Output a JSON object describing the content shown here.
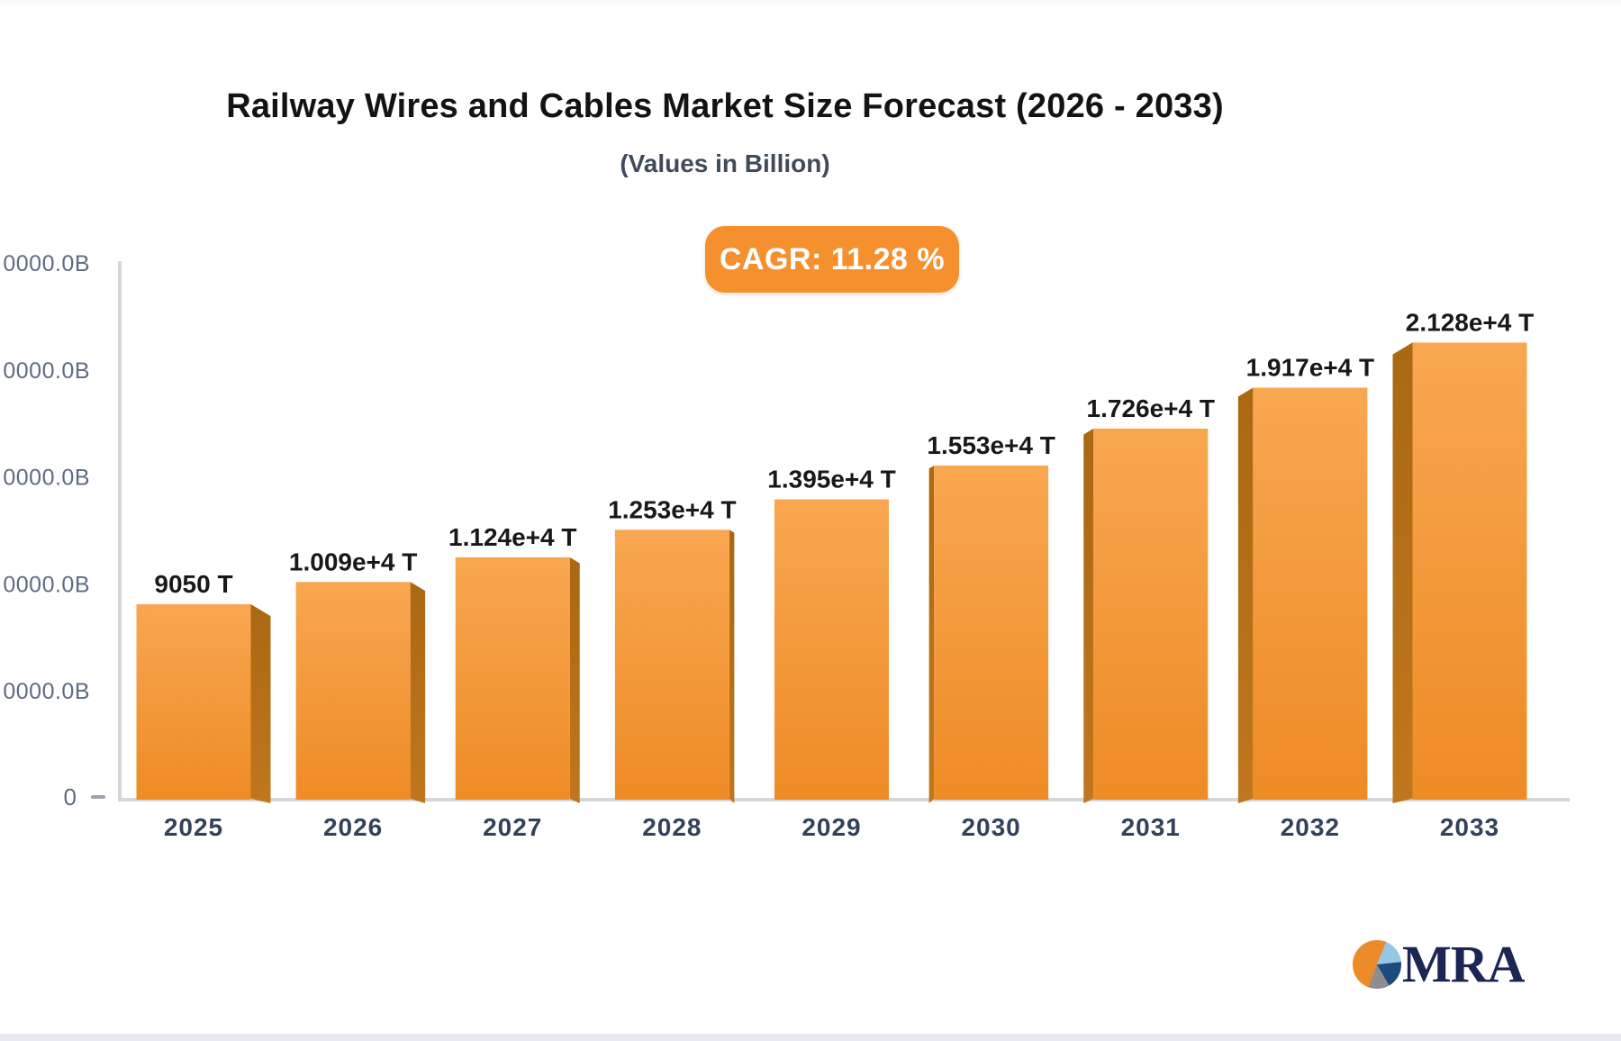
{
  "header": {
    "title": "Railway Wires and Cables Market Size Forecast (2026 - 2033)",
    "subtitle": "(Values in Billion)",
    "cagr_label": "CAGR: 11.28 %"
  },
  "brand": {
    "text": "MRA",
    "pie_colors": [
      "#ec8b28",
      "#97c6e3",
      "#1c4c7c",
      "#8e8e90"
    ]
  },
  "colors": {
    "accent_orange": "#f5902e",
    "bar_face_top": "#f8a751",
    "bar_face_bottom": "#ee8b25",
    "bar_side": "#b26d17",
    "axis_line": "#d5d6d9",
    "y_tick_text": "#5f6b82",
    "x_tick_text": "#334259",
    "value_label_text": "#181818",
    "zero_tick_dash": "#9aa2ad"
  },
  "chart_data": {
    "type": "bar",
    "title": "Railway Wires and Cables Market Size Forecast (2026 - 2033)",
    "subtitle": "(Values in Billion)",
    "categories": [
      "2025",
      "2026",
      "2027",
      "2028",
      "2029",
      "2030",
      "2031",
      "2032",
      "2033"
    ],
    "values": [
      9050,
      10090,
      11240,
      12530,
      13950,
      15530,
      17260,
      19170,
      21280
    ],
    "value_labels": [
      "9050 T",
      "1.009e+4 T",
      "1.124e+4 T",
      "1.253e+4 T",
      "1.395e+4 T",
      "1.553e+4 T",
      "1.726e+4 T",
      "1.917e+4 T",
      "2.128e+4 T"
    ],
    "cagr_percent": 11.28,
    "xlabel": "",
    "ylabel": "",
    "ylim": [
      0,
      25000
    ],
    "y_tick_interval": 5000,
    "y_tick_labels_visible": [
      "0000.0B",
      "0000.0B",
      "0000.0B",
      "0000.0B",
      "0000.0B"
    ],
    "y_zero_label": "0",
    "grid": false,
    "legend": false
  }
}
